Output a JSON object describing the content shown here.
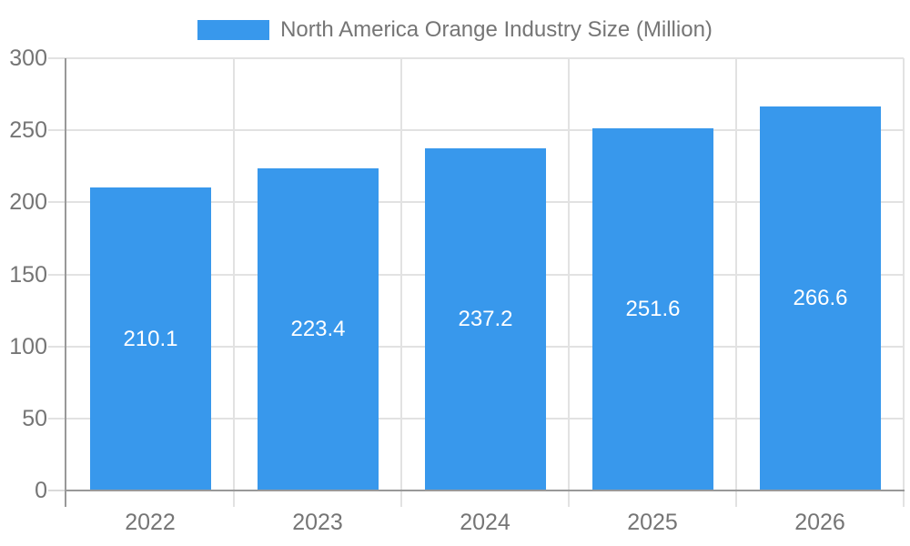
{
  "chart_data": {
    "type": "bar",
    "title": "",
    "legend": "North America Orange Industry Size (Million)",
    "legend_position": "top-center",
    "categories": [
      "2022",
      "2023",
      "2024",
      "2025",
      "2026"
    ],
    "series": [
      {
        "name": "North America Orange Industry Size (Million)",
        "values": [
          210.1,
          223.4,
          237.2,
          251.6,
          266.6
        ]
      }
    ],
    "value_labels": [
      "210.1",
      "223.4",
      "237.2",
      "251.6",
      "266.6"
    ],
    "xlabel": "",
    "ylabel": "",
    "ylim": [
      0,
      300
    ],
    "ytick_step": 50,
    "yticks": [
      "0",
      "50",
      "100",
      "150",
      "200",
      "250",
      "300"
    ],
    "grid": true
  },
  "colors": {
    "bar": "#3898EC",
    "grid": "#E2E2E2",
    "tick": "#D9D9D9",
    "axis": "#999999",
    "tick_label": "#757575",
    "legend_text": "#757575",
    "value_label": "#FFFFFF",
    "background": "#FFFFFF"
  }
}
